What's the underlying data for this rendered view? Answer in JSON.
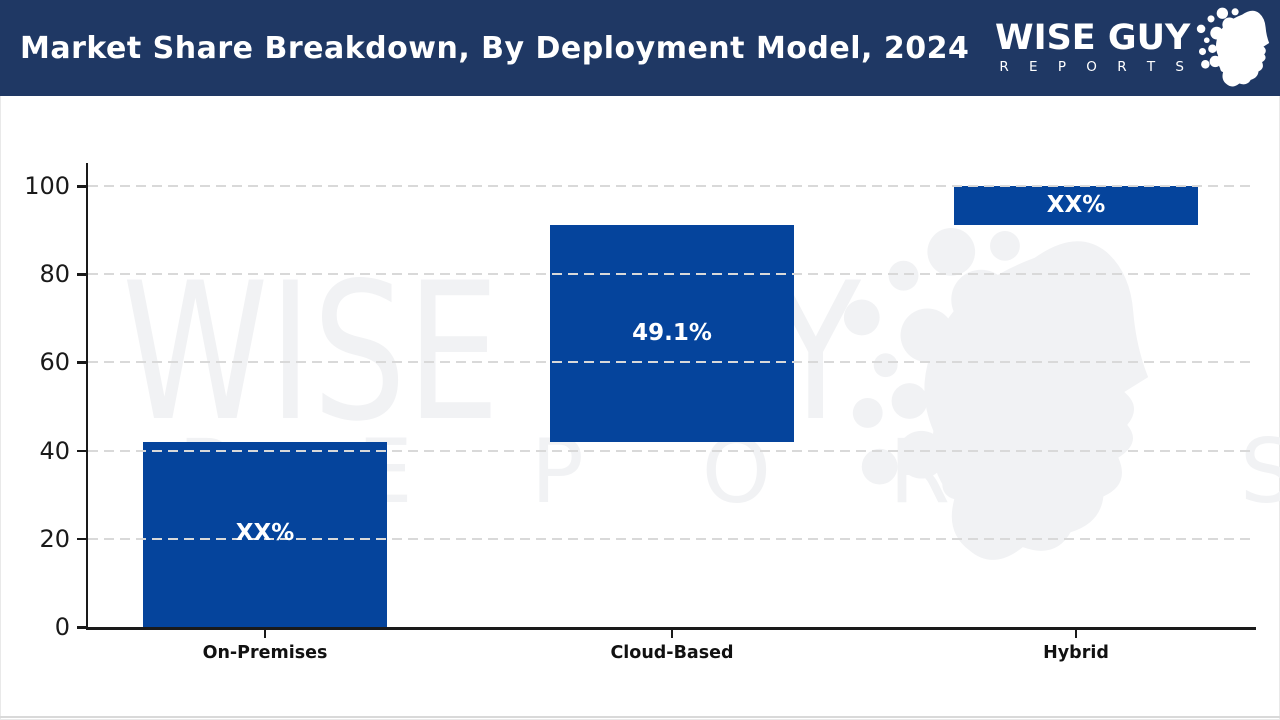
{
  "header": {
    "title": "Market Share Breakdown, By Deployment Model, 2024",
    "logo_line1": "WISE GUY",
    "logo_line2": "R E P O R T S",
    "bg_color": "#1f3864"
  },
  "watermark": {
    "big_text": "WISE GUY",
    "small_text": "R E P O R T S"
  },
  "chart_data": {
    "type": "bar",
    "subtype": "floating-waterfall",
    "title": "Market Share Breakdown, By Deployment Model, 2024",
    "categories": [
      "On-Premises",
      "Cloud-Based",
      "Hybrid"
    ],
    "bars": [
      {
        "category": "On-Premises",
        "start": 0,
        "end": 42,
        "label": "XX%"
      },
      {
        "category": "Cloud-Based",
        "start": 42,
        "end": 91.1,
        "label": "49.1%"
      },
      {
        "category": "Hybrid",
        "start": 91.1,
        "end": 100,
        "label": "XX%"
      }
    ],
    "bar_color": "#05449c",
    "label_color": "#ffffff",
    "ylim": [
      0,
      100
    ],
    "yticks": [
      0,
      20,
      40,
      60,
      80,
      100
    ],
    "grid": {
      "show": true,
      "style": "dashed",
      "orientation": "horizontal",
      "color": "#d9d9d9"
    },
    "axis_color": "#1a1a1a",
    "xlabel": "",
    "ylabel": "",
    "legend": "none"
  }
}
